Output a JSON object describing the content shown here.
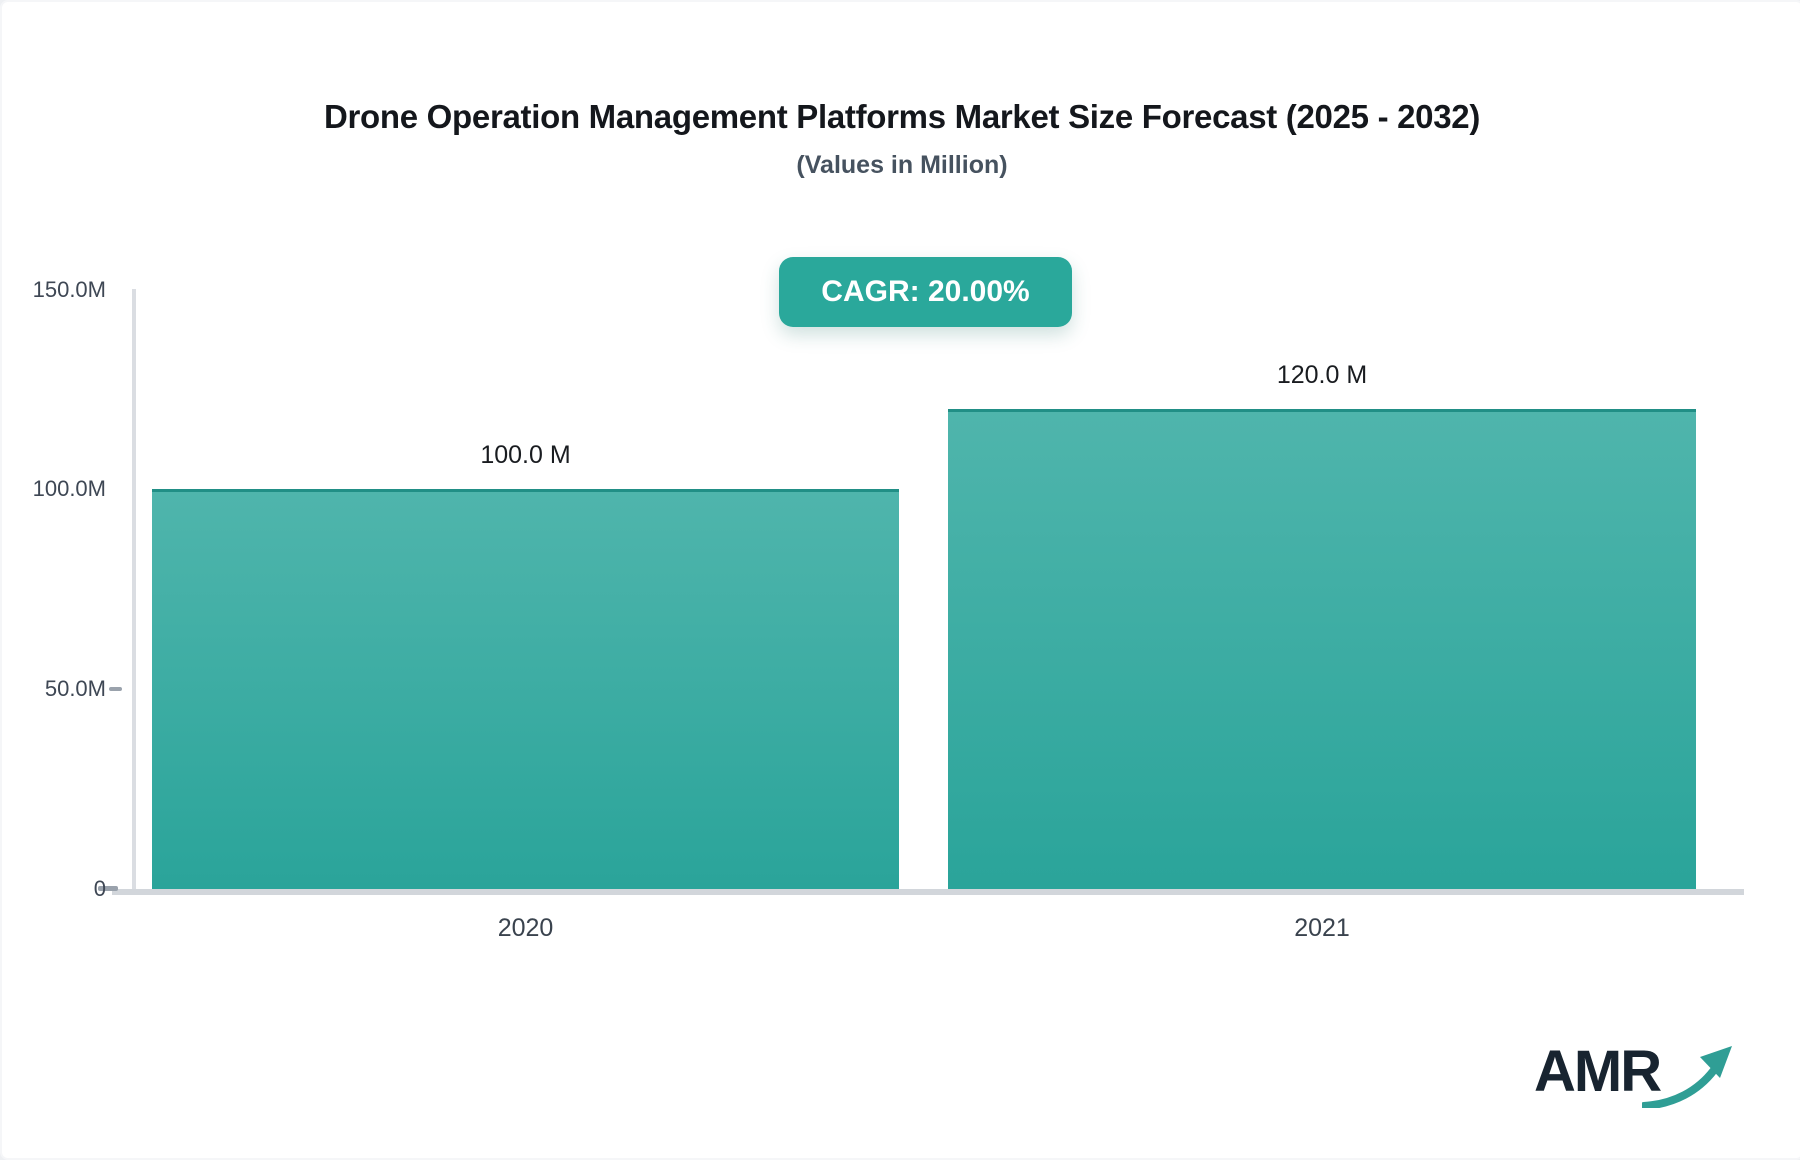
{
  "header": {
    "title": "Drone Operation Management Platforms Market Size Forecast (2025 - 2032)",
    "subtitle": "(Values in Million)",
    "cagr_badge": "CAGR: 20.00%"
  },
  "chart_data": {
    "type": "bar",
    "title": "Drone Operation Management Platforms Market Size Forecast (2025 - 2032)",
    "subtitle": "(Values in Million)",
    "unit": "Million",
    "cagr_percent": 20.0,
    "categories": [
      "2020",
      "2021"
    ],
    "values": [
      100.0,
      120.0
    ],
    "bar_labels": [
      "100.0 M",
      "120.0 M"
    ],
    "ylim": [
      0,
      150
    ],
    "ytick_labels": [
      "150.0M",
      "100.0M",
      "50.0M",
      "0"
    ],
    "grid": "off",
    "legend": "none",
    "colors": {
      "bar_gradient_top": "#4fb5ac",
      "bar_gradient_bottom": "#2aa49a",
      "bar_top_border": "#218f86",
      "badge_background": "#2aa89b",
      "axis_line": "#d2d6db",
      "tick_label": "#3e4754"
    }
  },
  "logo": {
    "text": "AMR",
    "arrow_color": "#2f9e95",
    "text_color": "#182430"
  }
}
